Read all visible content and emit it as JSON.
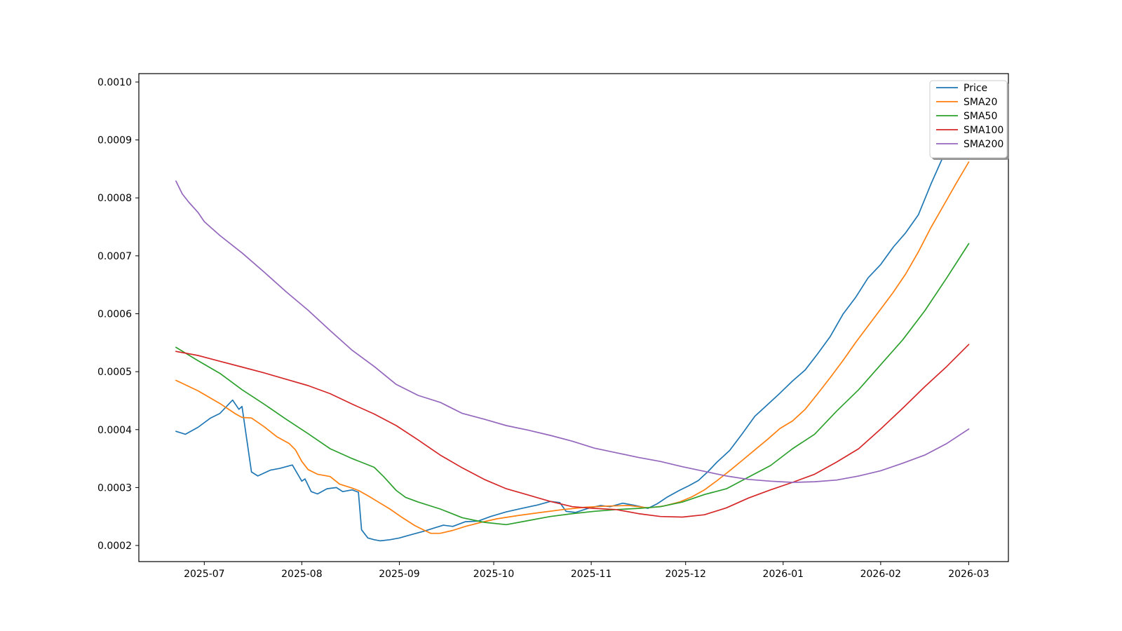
{
  "figure": {
    "background_color": "#ffffff",
    "axes_edge_color": "#000000",
    "title": ""
  },
  "chart_data": {
    "type": "line",
    "title": "",
    "xlabel": "",
    "ylabel": "",
    "grid": false,
    "x_unit": "days since 2025-06-22",
    "xlim_days": [
      -11.8,
      264.6
    ],
    "ylim": [
      0.0001722,
      0.0010145
    ],
    "x_ticks": [
      {
        "day": 9,
        "label": "2025-07"
      },
      {
        "day": 40,
        "label": "2025-08"
      },
      {
        "day": 71,
        "label": "2025-09"
      },
      {
        "day": 101,
        "label": "2025-10"
      },
      {
        "day": 132,
        "label": "2025-11"
      },
      {
        "day": 162,
        "label": "2025-12"
      },
      {
        "day": 193,
        "label": "2026-01"
      },
      {
        "day": 224,
        "label": "2026-02"
      },
      {
        "day": 252,
        "label": "2026-03"
      }
    ],
    "y_ticks": [
      {
        "value": 0.0002,
        "label": "0.0002"
      },
      {
        "value": 0.0003,
        "label": "0.0003"
      },
      {
        "value": 0.0004,
        "label": "0.0004"
      },
      {
        "value": 0.0005,
        "label": "0.0005"
      },
      {
        "value": 0.0006,
        "label": "0.0006"
      },
      {
        "value": 0.0007,
        "label": "0.0007"
      },
      {
        "value": 0.0008,
        "label": "0.0008"
      },
      {
        "value": 0.0009,
        "label": "0.0009"
      },
      {
        "value": 0.001,
        "label": "0.0010"
      }
    ],
    "legend": {
      "position": "upper right",
      "shadow": true,
      "border_color": "#cccccc",
      "shadow_color": "#909090",
      "entries": [
        "Price",
        "SMA20",
        "SMA50",
        "SMA100",
        "SMA200"
      ]
    },
    "series": [
      {
        "name": "Price",
        "color": "#1f77b4",
        "points": [
          [
            0,
            0.000397
          ],
          [
            3,
            0.000392
          ],
          [
            7,
            0.000404
          ],
          [
            11,
            0.00042
          ],
          [
            14,
            0.000428
          ],
          [
            18,
            0.000451
          ],
          [
            20,
            0.000435
          ],
          [
            21,
            0.00044
          ],
          [
            24,
            0.000327
          ],
          [
            26,
            0.00032
          ],
          [
            30,
            0.00033
          ],
          [
            33,
            0.000333
          ],
          [
            37,
            0.000339
          ],
          [
            40,
            0.000311
          ],
          [
            41,
            0.000315
          ],
          [
            43,
            0.000293
          ],
          [
            45,
            0.000289
          ],
          [
            48,
            0.000298
          ],
          [
            51,
            0.0003
          ],
          [
            53,
            0.000293
          ],
          [
            56,
            0.000296
          ],
          [
            58,
            0.000292
          ],
          [
            59,
            0.000227
          ],
          [
            61,
            0.000213
          ],
          [
            63,
            0.00021
          ],
          [
            65,
            0.000208
          ],
          [
            68,
            0.00021
          ],
          [
            71,
            0.000213
          ],
          [
            75,
            0.000219
          ],
          [
            79,
            0.000225
          ],
          [
            82,
            0.00023
          ],
          [
            85,
            0.000235
          ],
          [
            88,
            0.000233
          ],
          [
            92,
            0.000241
          ],
          [
            96,
            0.000242
          ],
          [
            100,
            0.00025
          ],
          [
            105,
            0.000258
          ],
          [
            110,
            0.000264
          ],
          [
            115,
            0.00027
          ],
          [
            119,
            0.000276
          ],
          [
            122,
            0.000274
          ],
          [
            124,
            0.000259
          ],
          [
            127,
            0.000257
          ],
          [
            131,
            0.000264
          ],
          [
            135,
            0.000269
          ],
          [
            138,
            0.000267
          ],
          [
            142,
            0.000273
          ],
          [
            146,
            0.000269
          ],
          [
            150,
            0.000264
          ],
          [
            153,
            0.000272
          ],
          [
            156,
            0.000283
          ],
          [
            160,
            0.000295
          ],
          [
            163,
            0.000303
          ],
          [
            166,
            0.000312
          ],
          [
            169,
            0.000327
          ],
          [
            172,
            0.000344
          ],
          [
            176,
            0.000364
          ],
          [
            180,
            0.000393
          ],
          [
            184,
            0.000423
          ],
          [
            188,
            0.000443
          ],
          [
            192,
            0.000463
          ],
          [
            196,
            0.000484
          ],
          [
            200,
            0.000503
          ],
          [
            204,
            0.000531
          ],
          [
            208,
            0.000561
          ],
          [
            212,
            0.000599
          ],
          [
            216,
            0.000628
          ],
          [
            220,
            0.000662
          ],
          [
            224,
            0.000685
          ],
          [
            228,
            0.000715
          ],
          [
            232,
            0.00074
          ],
          [
            236,
            0.000771
          ],
          [
            240,
            0.000824
          ],
          [
            244,
            0.000873
          ],
          [
            248,
            0.000915
          ],
          [
            252,
            0.000957
          ]
        ]
      },
      {
        "name": "SMA20",
        "color": "#ff7f0e",
        "points": [
          [
            0,
            0.000485
          ],
          [
            7,
            0.000467
          ],
          [
            14,
            0.000445
          ],
          [
            19,
            0.000427
          ],
          [
            21,
            0.000421
          ],
          [
            24,
            0.00042
          ],
          [
            28,
            0.000405
          ],
          [
            32,
            0.000388
          ],
          [
            36,
            0.000376
          ],
          [
            38,
            0.000365
          ],
          [
            40,
            0.000345
          ],
          [
            42,
            0.000331
          ],
          [
            45,
            0.000323
          ],
          [
            49,
            0.000319
          ],
          [
            52,
            0.000306
          ],
          [
            56,
            0.000299
          ],
          [
            58,
            0.000295
          ],
          [
            61,
            0.000286
          ],
          [
            64,
            0.000276
          ],
          [
            68,
            0.000263
          ],
          [
            72,
            0.000248
          ],
          [
            76,
            0.000234
          ],
          [
            79,
            0.000226
          ],
          [
            81,
            0.000221
          ],
          [
            84,
            0.000221
          ],
          [
            88,
            0.000226
          ],
          [
            92,
            0.000233
          ],
          [
            97,
            0.00024
          ],
          [
            102,
            0.000246
          ],
          [
            109,
            0.000252
          ],
          [
            116,
            0.000257
          ],
          [
            123,
            0.000262
          ],
          [
            130,
            0.000266
          ],
          [
            137,
            0.000268
          ],
          [
            144,
            0.000269
          ],
          [
            150,
            0.000265
          ],
          [
            155,
            0.000268
          ],
          [
            160,
            0.000275
          ],
          [
            164,
            0.000284
          ],
          [
            168,
            0.000296
          ],
          [
            172,
            0.000312
          ],
          [
            176,
            0.000329
          ],
          [
            180,
            0.000347
          ],
          [
            184,
            0.000365
          ],
          [
            188,
            0.000383
          ],
          [
            192,
            0.000402
          ],
          [
            196,
            0.000415
          ],
          [
            200,
            0.000435
          ],
          [
            204,
            0.000462
          ],
          [
            208,
            0.00049
          ],
          [
            212,
            0.000519
          ],
          [
            216,
            0.00055
          ],
          [
            220,
            0.000579
          ],
          [
            224,
            0.000608
          ],
          [
            228,
            0.000637
          ],
          [
            232,
            0.000669
          ],
          [
            236,
            0.000707
          ],
          [
            240,
            0.000749
          ],
          [
            244,
            0.000787
          ],
          [
            248,
            0.000825
          ],
          [
            252,
            0.000862
          ]
        ]
      },
      {
        "name": "SMA50",
        "color": "#2ca02c",
        "points": [
          [
            0,
            0.000542
          ],
          [
            7,
            0.000519
          ],
          [
            14,
            0.000497
          ],
          [
            21,
            0.000469
          ],
          [
            28,
            0.000444
          ],
          [
            35,
            0.000418
          ],
          [
            42,
            0.000393
          ],
          [
            49,
            0.000367
          ],
          [
            56,
            0.00035
          ],
          [
            63,
            0.000335
          ],
          [
            66,
            0.000319
          ],
          [
            70,
            0.000295
          ],
          [
            73,
            0.000283
          ],
          [
            77,
            0.000275
          ],
          [
            84,
            0.000263
          ],
          [
            91,
            0.000248
          ],
          [
            98,
            0.00024
          ],
          [
            105,
            0.000236
          ],
          [
            112,
            0.000243
          ],
          [
            119,
            0.00025
          ],
          [
            126,
            0.000255
          ],
          [
            133,
            0.000259
          ],
          [
            140,
            0.000262
          ],
          [
            147,
            0.000264
          ],
          [
            154,
            0.000267
          ],
          [
            161,
            0.000275
          ],
          [
            168,
            0.000288
          ],
          [
            175,
            0.000298
          ],
          [
            182,
            0.000318
          ],
          [
            189,
            0.000338
          ],
          [
            196,
            0.000367
          ],
          [
            203,
            0.000392
          ],
          [
            210,
            0.000432
          ],
          [
            217,
            0.000469
          ],
          [
            224,
            0.000512
          ],
          [
            231,
            0.000555
          ],
          [
            238,
            0.000605
          ],
          [
            245,
            0.000662
          ],
          [
            252,
            0.000721
          ]
        ]
      },
      {
        "name": "SMA100",
        "color": "#d62728",
        "points": [
          [
            0,
            0.000535
          ],
          [
            7,
            0.000528
          ],
          [
            14,
            0.000518
          ],
          [
            21,
            0.000508
          ],
          [
            28,
            0.000498
          ],
          [
            35,
            0.000487
          ],
          [
            42,
            0.000476
          ],
          [
            49,
            0.000462
          ],
          [
            56,
            0.000444
          ],
          [
            63,
            0.000427
          ],
          [
            70,
            0.000407
          ],
          [
            77,
            0.000382
          ],
          [
            84,
            0.000356
          ],
          [
            91,
            0.000334
          ],
          [
            98,
            0.000314
          ],
          [
            105,
            0.000298
          ],
          [
            112,
            0.000287
          ],
          [
            119,
            0.000276
          ],
          [
            126,
            0.000267
          ],
          [
            133,
            0.000264
          ],
          [
            140,
            0.000262
          ],
          [
            147,
            0.000255
          ],
          [
            154,
            0.00025
          ],
          [
            161,
            0.000249
          ],
          [
            168,
            0.000253
          ],
          [
            175,
            0.000265
          ],
          [
            182,
            0.000282
          ],
          [
            189,
            0.000296
          ],
          [
            196,
            0.000309
          ],
          [
            203,
            0.000323
          ],
          [
            210,
            0.000344
          ],
          [
            217,
            0.000367
          ],
          [
            224,
            0.000401
          ],
          [
            231,
            0.000437
          ],
          [
            238,
            0.000474
          ],
          [
            245,
            0.000509
          ],
          [
            252,
            0.000547
          ]
        ]
      },
      {
        "name": "SMA200",
        "color": "#9467bd",
        "points": [
          [
            0,
            0.000829
          ],
          [
            2,
            0.000807
          ],
          [
            4,
            0.000793
          ],
          [
            7,
            0.000775
          ],
          [
            9,
            0.000759
          ],
          [
            14,
            0.000735
          ],
          [
            21,
            0.000705
          ],
          [
            28,
            0.000672
          ],
          [
            35,
            0.000638
          ],
          [
            42,
            0.000606
          ],
          [
            49,
            0.000571
          ],
          [
            56,
            0.000537
          ],
          [
            63,
            0.000509
          ],
          [
            70,
            0.000478
          ],
          [
            77,
            0.000459
          ],
          [
            84,
            0.000447
          ],
          [
            91,
            0.000428
          ],
          [
            98,
            0.000418
          ],
          [
            105,
            0.000407
          ],
          [
            112,
            0.000399
          ],
          [
            119,
            0.00039
          ],
          [
            126,
            0.00038
          ],
          [
            133,
            0.000368
          ],
          [
            140,
            0.00036
          ],
          [
            147,
            0.000352
          ],
          [
            154,
            0.000345
          ],
          [
            161,
            0.000336
          ],
          [
            168,
            0.000328
          ],
          [
            175,
            0.00032
          ],
          [
            182,
            0.000314
          ],
          [
            189,
            0.000311
          ],
          [
            196,
            0.000309
          ],
          [
            203,
            0.00031
          ],
          [
            210,
            0.000313
          ],
          [
            217,
            0.00032
          ],
          [
            224,
            0.000329
          ],
          [
            231,
            0.000342
          ],
          [
            238,
            0.000356
          ],
          [
            245,
            0.000376
          ],
          [
            252,
            0.000401
          ]
        ]
      }
    ]
  }
}
